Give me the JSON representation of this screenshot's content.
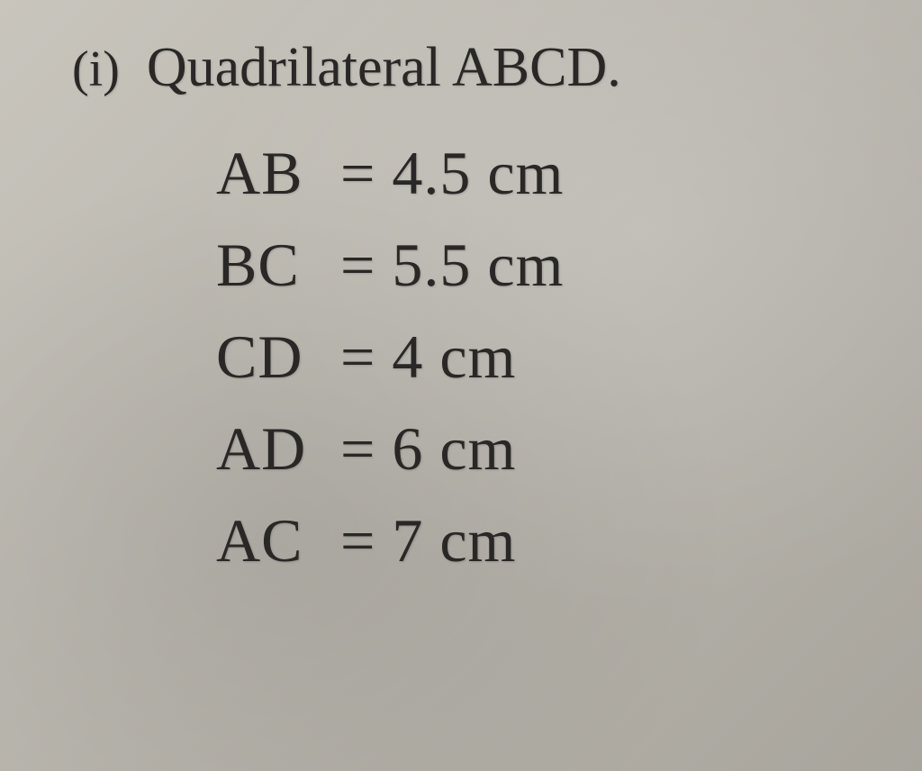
{
  "problem": {
    "item_number": "(i)",
    "title": "Quadrilateral ABCD.",
    "measurements": [
      {
        "side": "AB",
        "value": "4.5",
        "unit": "cm"
      },
      {
        "side": "BC",
        "value": "5.5",
        "unit": "cm"
      },
      {
        "side": "CD",
        "value": "4",
        "unit": "cm"
      },
      {
        "side": "AD",
        "value": "6",
        "unit": "cm"
      },
      {
        "side": "AC",
        "value": "7",
        "unit": "cm"
      }
    ]
  },
  "style": {
    "background_gradient_start": "#c8c5bd",
    "background_gradient_end": "#a8a59d",
    "text_color": "#2a2826",
    "heading_fontsize_pt": 46,
    "measurement_fontsize_pt": 51,
    "font_family": "Georgia, Times New Roman, serif"
  }
}
